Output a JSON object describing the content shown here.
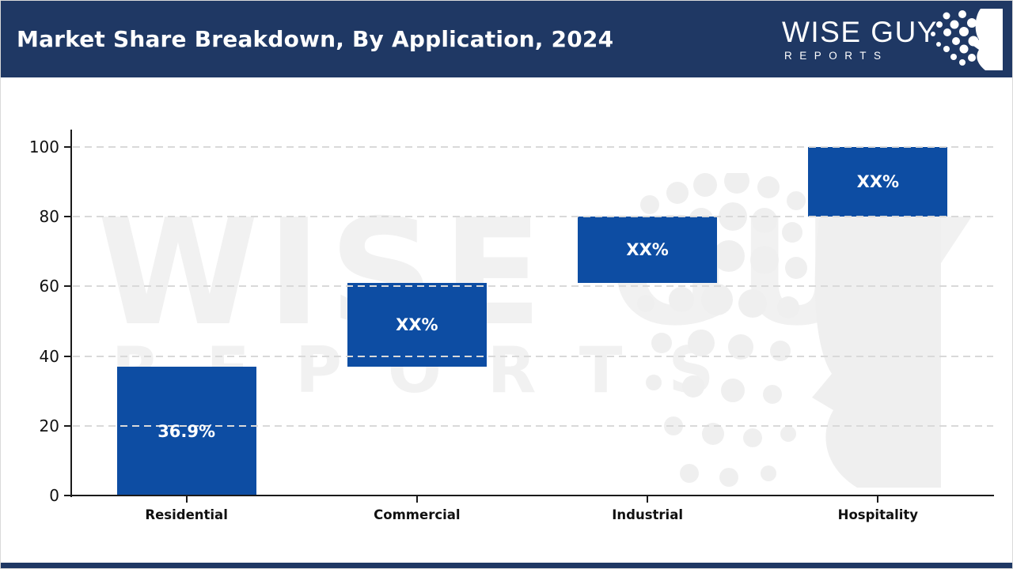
{
  "header": {
    "title": "Market Share Breakdown, By Application, 2024",
    "logo": {
      "name": "WISE GUY",
      "sub": "REPORTS"
    },
    "bg_color": "#1f3864"
  },
  "watermark": {
    "line1": "WISE GUY",
    "line2": "REPORTS"
  },
  "chart_data": {
    "type": "bar",
    "variant": "waterfall",
    "title": "Market Share Breakdown, By Application, 2024",
    "categories": [
      "Residential",
      "Commercial",
      "Industrial",
      "Hospitality"
    ],
    "segments": [
      {
        "category": "Residential",
        "start": 0,
        "end": 36.9,
        "label": "36.9%"
      },
      {
        "category": "Commercial",
        "start": 36.9,
        "end": 61,
        "label": "XX%"
      },
      {
        "category": "Industrial",
        "start": 61,
        "end": 80,
        "label": "XX%"
      },
      {
        "category": "Hospitality",
        "start": 80,
        "end": 100,
        "label": "XX%"
      }
    ],
    "ylim": [
      0,
      100
    ],
    "yticks": [
      0,
      20,
      40,
      60,
      80,
      100
    ],
    "xlabel": "",
    "ylabel": "",
    "grid": {
      "horizontal": true,
      "style": "dashed",
      "color": "#d9d9d9"
    },
    "legend": "none",
    "bar_color": "#0d4da3",
    "bar_label_color": "#ffffff",
    "axis_color": "#1a1a1a"
  }
}
